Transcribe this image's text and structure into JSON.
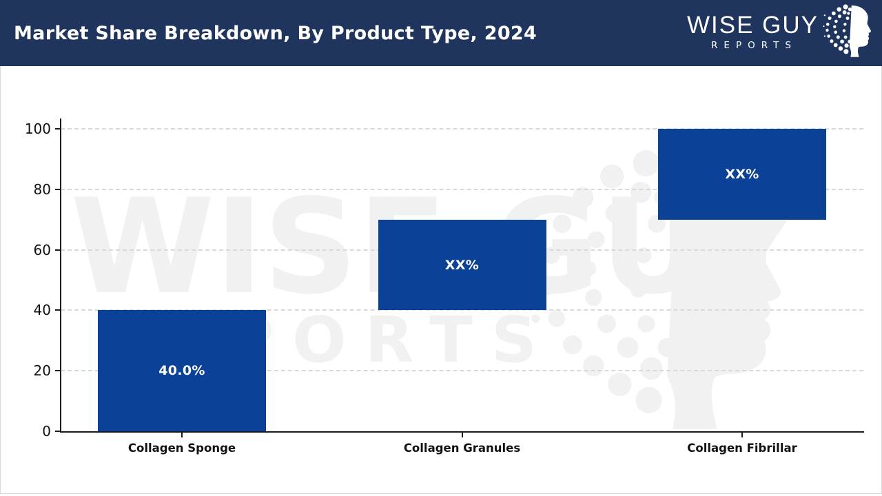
{
  "header": {
    "title": "Market Share Breakdown, By Product Type, 2024",
    "logo": {
      "brand_line1": "WISE GUY",
      "brand_line2": "REPORTS"
    }
  },
  "watermark": {
    "line1": "WISE GUY",
    "line2": "REPORTS"
  },
  "chart_data": {
    "type": "bar",
    "variant": "floating-segment-waterfall",
    "title": "Market Share Breakdown, By Product Type, 2024",
    "categories": [
      "Collagen Sponge",
      "Collagen Granules",
      "Collagen Fibrillar"
    ],
    "series": [
      {
        "name": "Market share (%)",
        "segments": [
          {
            "from": 0,
            "to": 40,
            "label": "40.0%"
          },
          {
            "from": 40,
            "to": 70,
            "label": "XX%"
          },
          {
            "from": 70,
            "to": 100,
            "label": "XX%"
          }
        ]
      }
    ],
    "ylim": [
      0,
      100
    ],
    "yticks": [
      0,
      20,
      40,
      60,
      80,
      100
    ],
    "xlabel": "",
    "ylabel": "",
    "grid": "horizontal-dashed",
    "legend": "none",
    "bar_color": "#0b4298",
    "bar_label_color": "#ffffff",
    "header_color": "#20355e",
    "gridline_color": "#d9d9d9",
    "axis_color": "#1a1a1a"
  }
}
